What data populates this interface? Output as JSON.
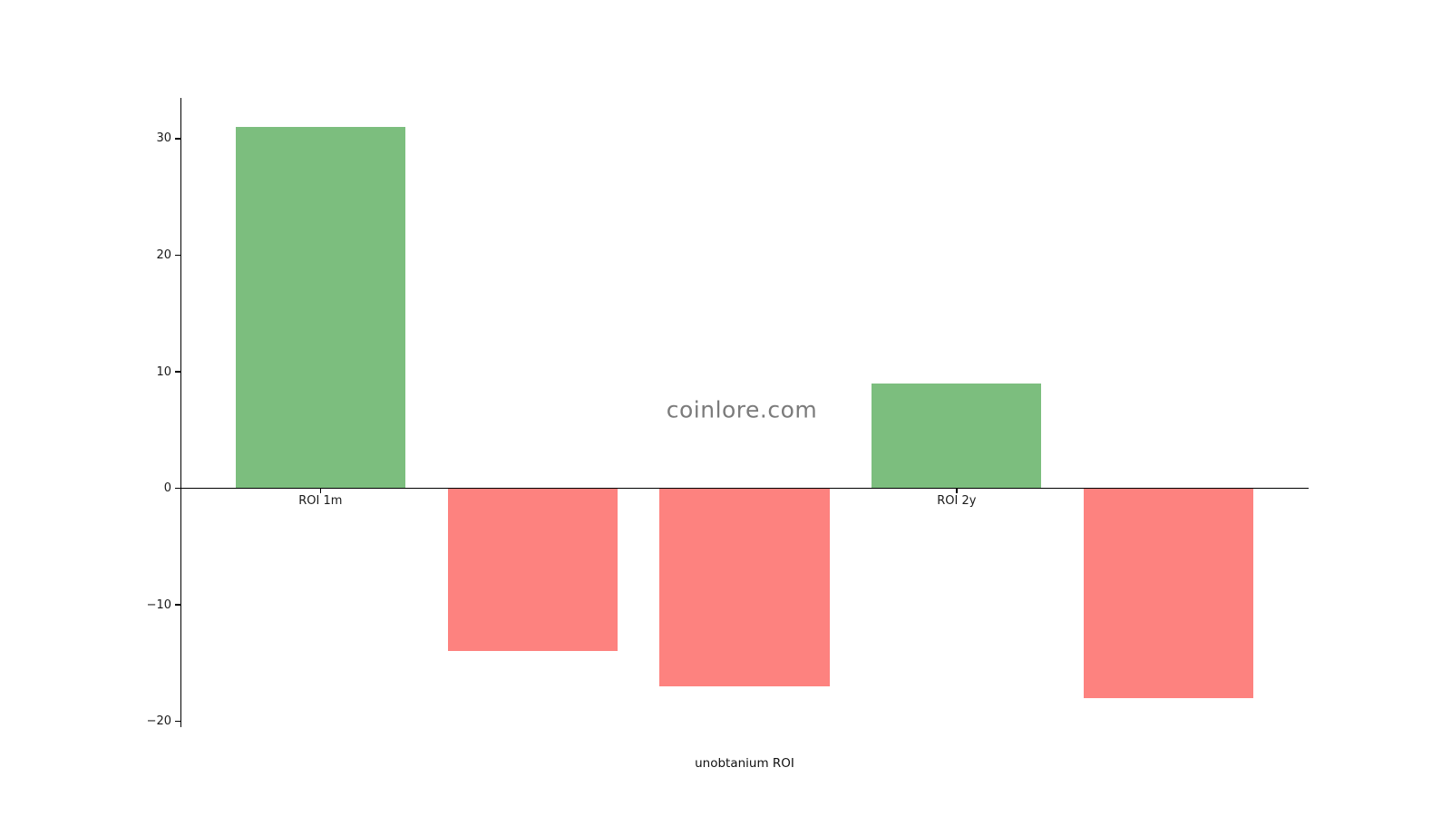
{
  "chart_data": {
    "type": "bar",
    "title": "",
    "xlabel": "unobtanium ROI",
    "ylabel": "",
    "watermark": "coinlore.com",
    "categories": [
      "ROI 1m",
      "",
      "",
      "ROI 2y",
      ""
    ],
    "values": [
      31,
      -14,
      -17,
      9,
      -18
    ],
    "yticks": [
      30,
      20,
      10,
      0,
      -10,
      -20
    ],
    "ytick_labels": [
      "30",
      "20",
      "10",
      "0",
      "−10",
      "−20"
    ],
    "ylim": [
      -20.5,
      33.5
    ],
    "grid": false,
    "legend": null,
    "colors": {
      "positive_bar": "#7cbe7e",
      "negative_bar": "#fd827f",
      "axis": "#000000",
      "tick_text": "#1a1a1a",
      "watermark_text": "#7b7b7b"
    }
  }
}
